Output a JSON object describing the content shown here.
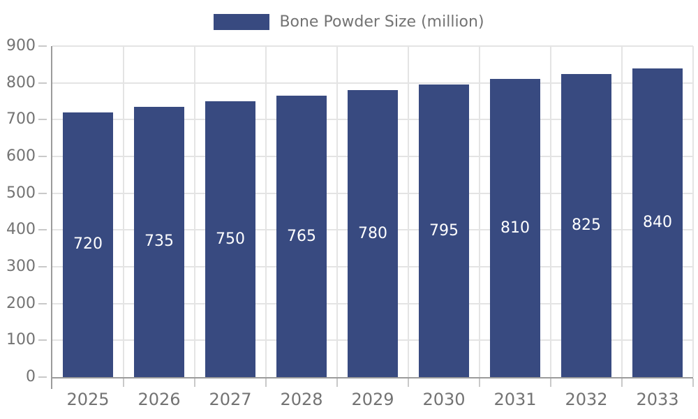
{
  "colors": {
    "bar": "#384A80",
    "axis_line": "#9B9B9B",
    "tick": "#C9C9C9",
    "gridline": "#E4E4E4",
    "text": "#737373",
    "bar_value_text": "#FFFFFF",
    "background": "#FFFFFF"
  },
  "chart_data": {
    "type": "bar",
    "title": "",
    "legend": {
      "label": "Bone Powder Size (million)",
      "position": "top-center"
    },
    "categories": [
      "2025",
      "2026",
      "2027",
      "2028",
      "2029",
      "2030",
      "2031",
      "2032",
      "2033"
    ],
    "series": [
      {
        "name": "Bone Powder Size (million)",
        "values": [
          720,
          735,
          750,
          765,
          780,
          795,
          810,
          825,
          840
        ]
      }
    ],
    "xlabel": "",
    "ylabel": "",
    "ylim": [
      0,
      900
    ],
    "ytick_step": 100,
    "yticks": [
      0,
      100,
      200,
      300,
      400,
      500,
      600,
      700,
      800,
      900
    ],
    "grid": true,
    "value_label_position": "inside-middle"
  }
}
